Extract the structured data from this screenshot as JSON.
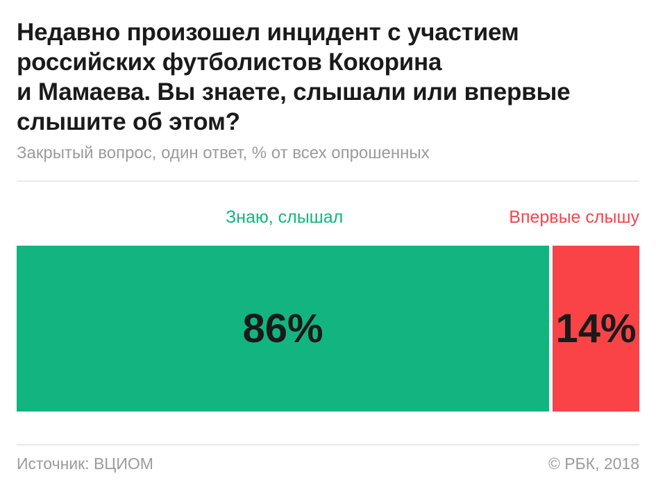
{
  "header": {
    "title_lines": [
      "Недавно произошел инцидент с участием",
      "российских футболистов Кокорина",
      "и Мамаева. Вы знаете, слышали или впервые",
      "слышите об этом?"
    ],
    "subtitle": "Закрытый вопрос, один ответ, % от всех опрошенных"
  },
  "chart_data": {
    "type": "bar",
    "stacked": true,
    "orientation": "horizontal",
    "title": "Недавно произошел инцидент с участием российских футболистов Кокорина и Мамаева. Вы знаете, слышали или впервые слышите об этом?",
    "subtitle": "Закрытый вопрос, один ответ, % от всех опрошенных",
    "unit": "%",
    "xlim": [
      0,
      100
    ],
    "grid": false,
    "legend_position": "above-bar",
    "series": [
      {
        "name": "Знаю, слышал",
        "value": 86,
        "label": "86%",
        "color": "#12b57f"
      },
      {
        "name": "Впервые слышу",
        "value": 14,
        "label": "14%",
        "color": "#fa4347"
      }
    ],
    "source": "ВЦИОМ"
  },
  "footer": {
    "source": "Источник: ВЦИОМ",
    "copyright": "© РБК, 2018"
  },
  "colors": {
    "positive": "#12b57f",
    "negative": "#fa4347",
    "title_text": "#1a1a1a",
    "muted_text": "#9b9b9b",
    "divider": "#e9e9e9",
    "background": "#ffffff",
    "bar_label_text": "#1a1a1a"
  }
}
